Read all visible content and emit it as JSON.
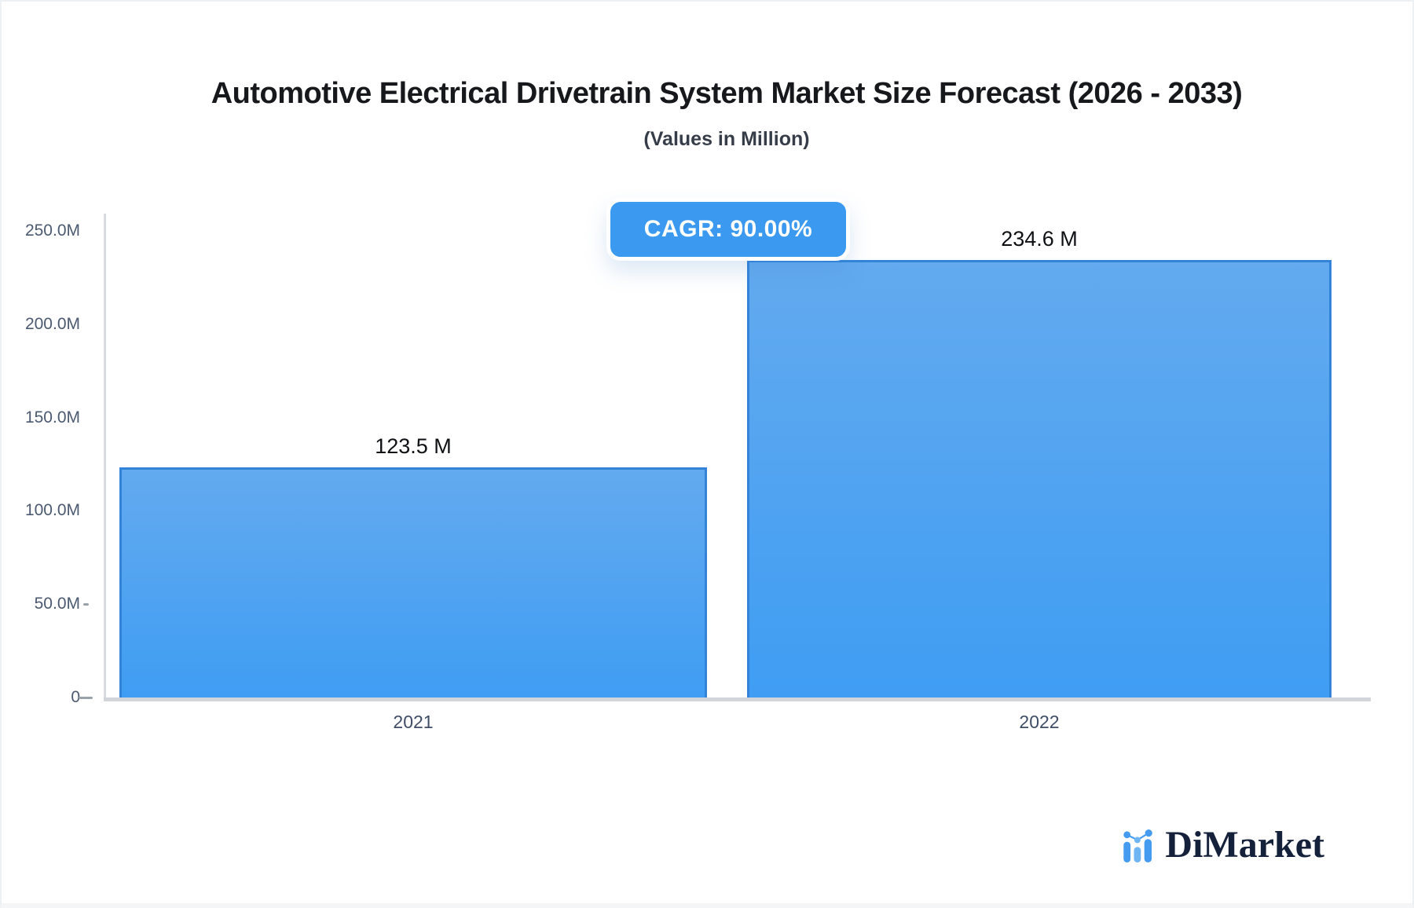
{
  "header": {
    "title": "Automotive Electrical Drivetrain System Market Size Forecast (2026 - 2033)",
    "subtitle": "(Values in Million)"
  },
  "badge": {
    "label": "CAGR: 90.00%",
    "color": "#3b9af0"
  },
  "chart_data": {
    "type": "bar",
    "title": "Automotive Electrical Drivetrain System Market Size Forecast (2026 - 2033)",
    "subtitle": "(Values in Million)",
    "unit": "Million",
    "categories": [
      "2021",
      "2022"
    ],
    "values": [
      123.5,
      234.6
    ],
    "value_labels": [
      "123.5 M",
      "234.6 M"
    ],
    "ylim": [
      0,
      250
    ],
    "ytick_labels": [
      "250.0M",
      "200.0M",
      "150.0M",
      "100.0M",
      "50.0M",
      "0"
    ],
    "grid": false,
    "legend": false,
    "bar_color_top": "#63aaef",
    "bar_color_bottom": "#3f9df3",
    "bar_border_color": "#3384d9"
  },
  "watermark": {
    "brand": "DiMarket",
    "icon": "dimarket-logo-icon",
    "icon_color": "#449bef",
    "icon_color_light": "#6fb4f3",
    "text_color": "#15213a"
  }
}
